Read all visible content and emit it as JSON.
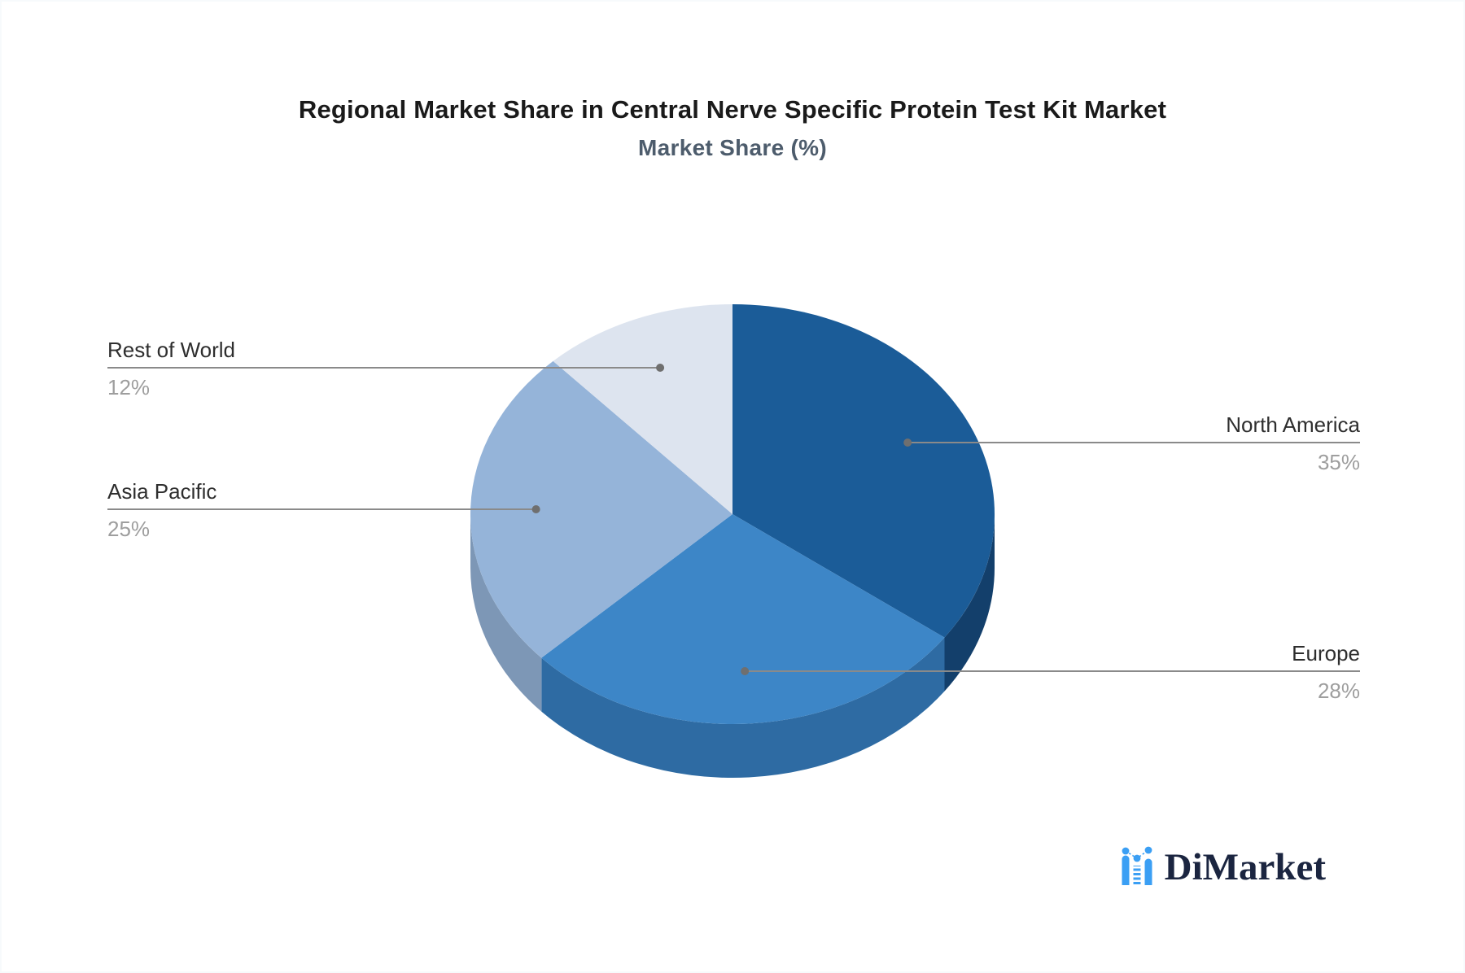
{
  "chart_data": {
    "type": "pie",
    "style": "3d-pie-with-depth",
    "title": "Regional Market Share in Central Nerve Specific Protein Test Kit Market",
    "subtitle": "Market Share (%)",
    "unit": "%",
    "start_angle_deg": 0,
    "direction": "clockwise",
    "slices": [
      {
        "label": "North America",
        "value": 35,
        "pct_text": "35%",
        "color": "#1b5c98",
        "side_color": "#133f6b"
      },
      {
        "label": "Europe",
        "value": 28,
        "pct_text": "28%",
        "color": "#3d86c7",
        "side_color": "#2e6ba3"
      },
      {
        "label": "Asia Pacific",
        "value": 25,
        "pct_text": "25%",
        "color": "#95b4d9",
        "side_color": "#7d97b6"
      },
      {
        "label": "Rest of World",
        "value": 12,
        "pct_text": "12%",
        "color": "#dde4ef",
        "side_color": "#b9c3d4"
      }
    ],
    "callout": {
      "line_color": "#8a8a8a",
      "dot_color": "#6f6f6f",
      "label_color": "#2e2e2e",
      "pct_color": "#9e9e9e"
    },
    "legend_position": "callout-labels",
    "grid": false
  },
  "logo": {
    "text": "DiMarket",
    "text_color": "#1b2540",
    "icon_color": "#3b9ff4",
    "icon": "bar-chart-with-dots-icon"
  }
}
